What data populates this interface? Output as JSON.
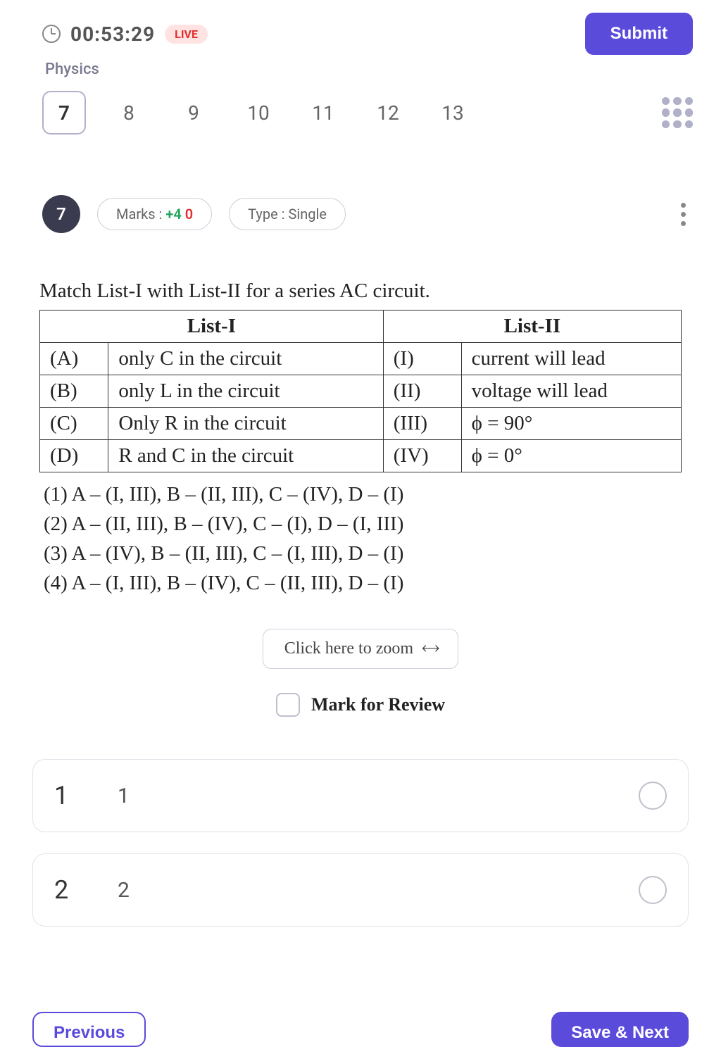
{
  "header": {
    "timer": "00:53:29",
    "live_label": "LIVE",
    "submit_label": "Submit",
    "subject": "Physics"
  },
  "qnav": {
    "items": [
      "7",
      "8",
      "9",
      "10",
      "11",
      "12",
      "13"
    ],
    "active_index": 0
  },
  "meta": {
    "qnumber": "7",
    "marks_label": "Marks : ",
    "marks_pos": "+4",
    "marks_neg": "0",
    "type_label": "Type : Single"
  },
  "question": {
    "stem": "Match List-I with List-II for a series AC circuit.",
    "list1_header": "List-I",
    "list2_header": "List-II",
    "rows": [
      {
        "l1k": "(A)",
        "l1v": "only C in the circuit",
        "l2k": "(I)",
        "l2v": "current will lead"
      },
      {
        "l1k": "(B)",
        "l1v": "only L in the circuit",
        "l2k": "(II)",
        "l2v": "voltage will lead"
      },
      {
        "l1k": "(C)",
        "l1v": "Only R in the circuit",
        "l2k": "(III)",
        "l2v": "ϕ = 90°"
      },
      {
        "l1k": "(D)",
        "l1v": "R and C in the circuit",
        "l2k": "(IV)",
        "l2v": "ϕ = 0°"
      }
    ],
    "options": [
      "(1)  A – (I, III), B – (II, III), C – (IV), D – (I)",
      "(2)  A – (II, III), B – (IV), C – (I), D – (I, III)",
      "(3)  A – (IV), B – (II, III), C – (I, III), D – (I)",
      "(4)  A – (I, III), B – (IV), C – (II, III), D – (I)"
    ]
  },
  "zoom_label": "Click here to zoom",
  "mark_review_label": "Mark for Review",
  "answers": [
    {
      "num": "1",
      "txt": "1"
    },
    {
      "num": "2",
      "txt": "2"
    }
  ],
  "nav": {
    "prev": "Previous",
    "next": "Save & Next"
  },
  "colors": {
    "accent": "#5b4bdb",
    "pill_border": "#d0d0dd",
    "badge_bg": "#3b3b4f"
  }
}
